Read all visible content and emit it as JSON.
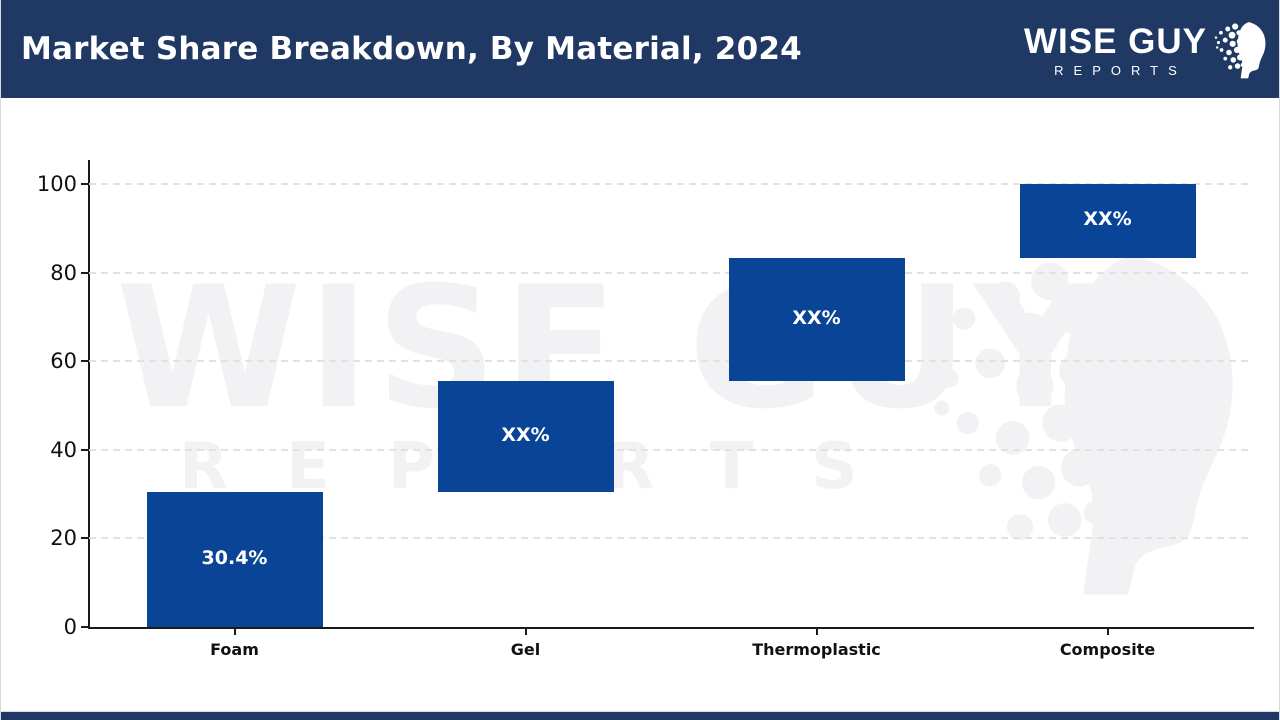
{
  "header": {
    "title": "Market Share Breakdown, By Material, 2024",
    "bg_color": "#1f3864",
    "logo": {
      "line1": "WISE GUY",
      "line2": "REPORTS"
    }
  },
  "watermark": {
    "line1": "WISE GUY",
    "line2": "REPORTS"
  },
  "chart_data": {
    "type": "bar",
    "subtype": "waterfall",
    "title": "Market Share Breakdown, By Material, 2024",
    "categories": [
      "Foam",
      "Gel",
      "Thermoplastic",
      "Composite"
    ],
    "segments": [
      {
        "category": "Foam",
        "start": 0,
        "end": 30.4,
        "label": "30.4%"
      },
      {
        "category": "Gel",
        "start": 30.4,
        "end": 55.6,
        "label": "XX%"
      },
      {
        "category": "Thermoplastic",
        "start": 55.6,
        "end": 83.2,
        "label": "XX%"
      },
      {
        "category": "Composite",
        "start": 83.2,
        "end": 100,
        "label": "XX%"
      }
    ],
    "y_ticks": [
      0,
      20,
      40,
      60,
      80,
      100
    ],
    "ylim": [
      0,
      105
    ],
    "xlabel": "",
    "ylabel": "",
    "grid": "horizontal-dashed",
    "legend": "none",
    "bar_color": "#0a4496",
    "bar_label_color": "#ffffff",
    "axis_color": "#1a1a1a",
    "gridline_color": "#e2e2e2"
  }
}
